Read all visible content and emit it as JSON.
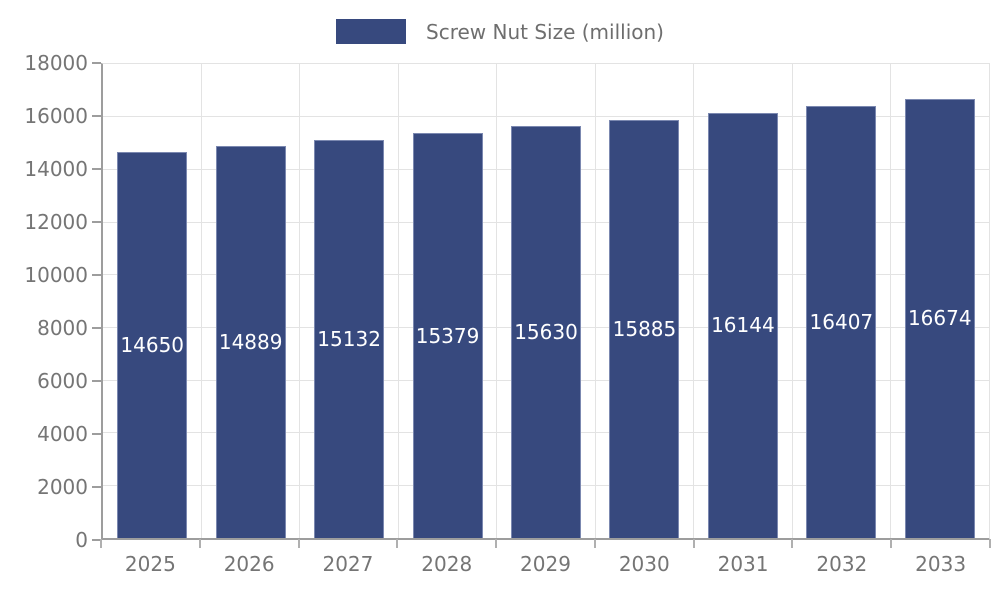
{
  "legend": {
    "label": "Screw Nut Size (million)"
  },
  "colors": {
    "bar_fill": "#37497E",
    "bar_border": "#7B88B0",
    "value_label": "#FFFFFF",
    "grid_line": "#E3E3E3",
    "axis_line": "#9D9D9D",
    "tick_label": "#757575",
    "legend_text": "#6E6E6E",
    "background": "#FFFFFF"
  },
  "chart_data": {
    "type": "bar",
    "title": "",
    "categories": [
      "2025",
      "2026",
      "2027",
      "2028",
      "2029",
      "2030",
      "2031",
      "2032",
      "2033"
    ],
    "series": [
      {
        "name": "Screw Nut Size (million)",
        "values": [
          14650,
          14889,
          15132,
          15379,
          15630,
          15885,
          16144,
          16407,
          16674
        ]
      }
    ],
    "value_labels_shown": true,
    "value_label_position": "inside-center",
    "xlabel": "",
    "ylabel": "",
    "ylim": [
      0,
      18000
    ],
    "ytick_step": 2000,
    "yticks": [
      0,
      2000,
      4000,
      6000,
      8000,
      10000,
      12000,
      14000,
      16000,
      18000
    ],
    "grid": true,
    "grid_vertical_at_band_boundaries": true,
    "legend_position": "top-center"
  }
}
